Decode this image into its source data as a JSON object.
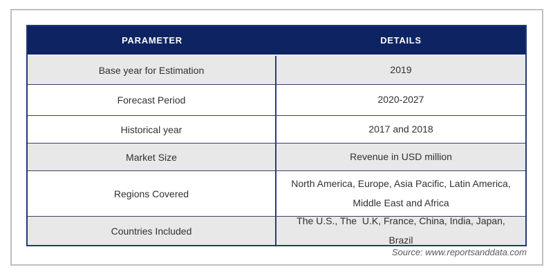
{
  "chart_data": {
    "type": "table",
    "columns": [
      "PARAMETER",
      "DETAILS"
    ],
    "rows": [
      {
        "parameter": "Base year for Estimation",
        "details": "2019"
      },
      {
        "parameter": "Forecast Period",
        "details": "2020-2027"
      },
      {
        "parameter": "Historical year",
        "details": "2017 and 2018"
      },
      {
        "parameter": "Market Size",
        "details": "Revenue in USD million"
      },
      {
        "parameter": "Regions Covered",
        "details": "North America, Europe, Asia Pacific, Latin America,\nMiddle East and Africa"
      },
      {
        "parameter": "Countries Included",
        "details": "The U.S., The  U.K, France, China, India, Japan, Brazil"
      }
    ],
    "source": "Source: www.reportsanddata.com",
    "layout_hints": {
      "grid": "on",
      "row_shading_pattern": [
        "shaded",
        "plain",
        "plain",
        "shaded",
        "plain",
        "shaded"
      ]
    }
  },
  "colors": {
    "header_bg": "#0e2462",
    "header_text": "#ffffff",
    "shaded_row_bg": "#e8e8e8",
    "plain_row_bg": "#ffffff",
    "table_border": "#22386e",
    "inner_border": "#31406a",
    "frame_border": "#bfbfbf",
    "cell_text": "#303030",
    "source_text": "#58595b"
  }
}
